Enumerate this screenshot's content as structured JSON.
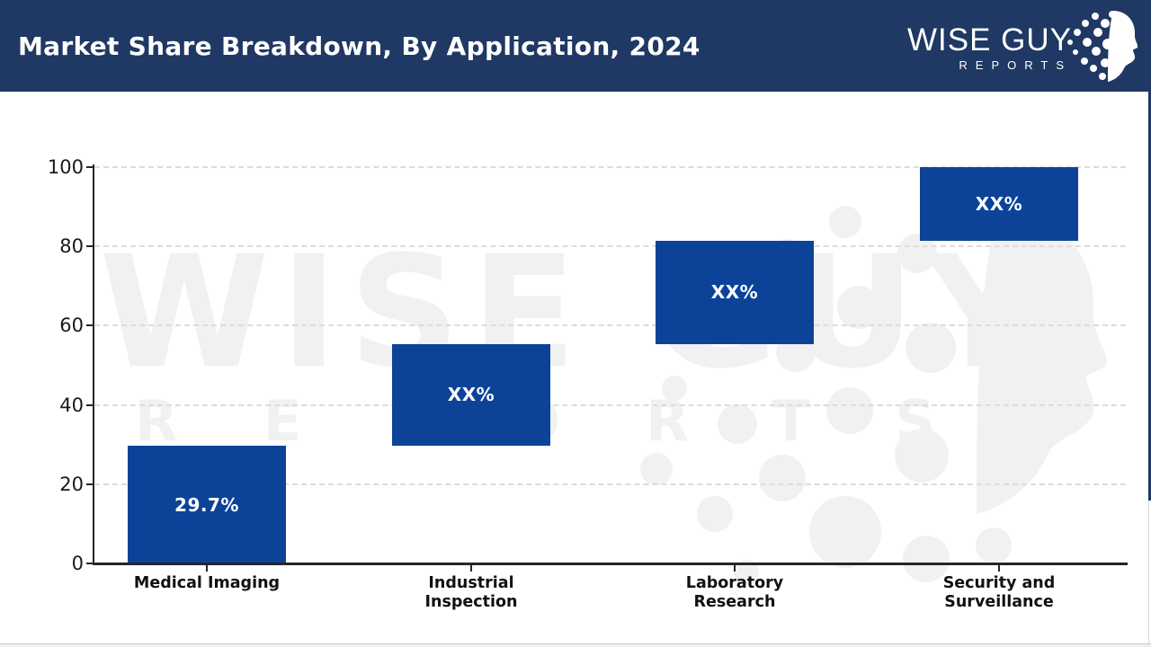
{
  "header": {
    "title": "Market Share Breakdown, By Application, 2024",
    "logo": {
      "wordmark": "WISE GUY",
      "subtext": "REPORTS"
    }
  },
  "watermark": {
    "line1": "WISE GUY",
    "line2": "REPORTS"
  },
  "colors": {
    "header_bg": "#1f3864",
    "bar": "#0c4398",
    "gridline": "#dcdcdc",
    "axis": "#262626",
    "tick_text": "#1a1a1a",
    "watermark": "#f1f1f1"
  },
  "chart_data": {
    "type": "bar",
    "subtype": "waterfall-style floating segments",
    "title": "Market Share Breakdown, By Application, 2024",
    "categories": [
      "Medical Imaging",
      "Industrial Inspection",
      "Laboratory Research",
      "Security and Surveillance"
    ],
    "category_label_lines": [
      [
        "Medical Imaging"
      ],
      [
        "Industrial",
        "Inspection"
      ],
      [
        "Laboratory",
        "Research"
      ],
      [
        "Security and",
        "Surveillance"
      ]
    ],
    "segments": [
      {
        "category": "Medical Imaging",
        "start": 0,
        "end": 29.7,
        "label": "29.7%"
      },
      {
        "category": "Industrial Inspection",
        "start": 29.7,
        "end": 55.4,
        "label": "XX%"
      },
      {
        "category": "Laboratory Research",
        "start": 55.4,
        "end": 81.4,
        "label": "XX%"
      },
      {
        "category": "Security and Surveillance",
        "start": 81.4,
        "end": 100,
        "label": "XX%"
      }
    ],
    "y_ticks": [
      0,
      20,
      40,
      60,
      80,
      100
    ],
    "ylim": [
      0,
      100
    ],
    "xlabel": "",
    "ylabel": "",
    "grid": "horizontal dashed",
    "legend": "none"
  }
}
